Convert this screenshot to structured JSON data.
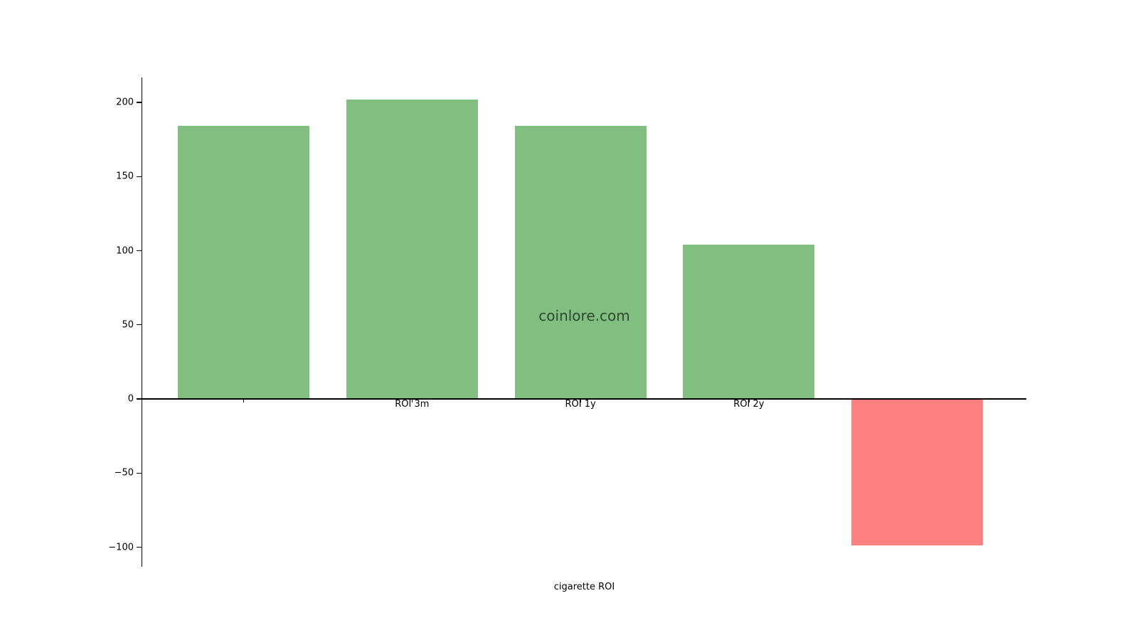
{
  "watermark": "coinlore.com",
  "chart_data": {
    "type": "bar",
    "title": "",
    "xlabel": "cigarette ROI",
    "ylabel": "",
    "categories": [
      "",
      "ROI 3m",
      "ROI 1y",
      "ROI 2y",
      ""
    ],
    "values": [
      184,
      202,
      184,
      104,
      -99
    ],
    "series": [
      {
        "name": "cigarette ROI",
        "values": [
          184,
          202,
          184,
          104,
          -99
        ]
      }
    ],
    "bar_colors": [
      "#80bf80",
      "#80bf80",
      "#80bf80",
      "#80bf80",
      "#ff8080"
    ],
    "positive_color": "#80bf80",
    "negative_color": "#ff8080",
    "yticks": [
      200,
      150,
      100,
      50,
      0,
      -50,
      -100
    ],
    "ylim": [
      -113,
      217
    ],
    "xaxis_position": "zero",
    "grid": false,
    "legend": null,
    "axis_color": "#000000",
    "background_color": "#ffffff"
  }
}
